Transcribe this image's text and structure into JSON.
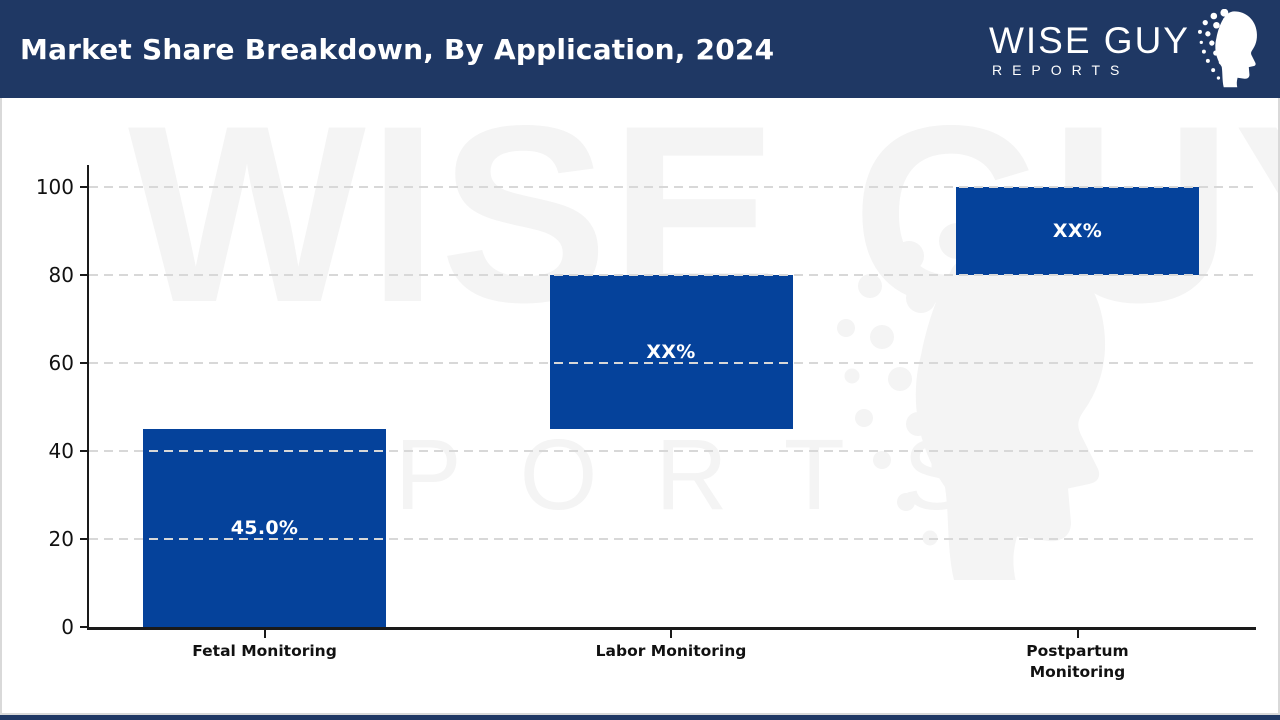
{
  "header": {
    "title": "Market Share Breakdown, By Application, 2024",
    "logo": {
      "line1": "WISE GUY",
      "line2": "REPORTS"
    }
  },
  "watermark": {
    "line1": "WISE GUY",
    "line2": "REPORTS"
  },
  "colors": {
    "header_bg": "#1F3864",
    "footer_bg": "#1F3864",
    "bar": "#05429B",
    "gridline": "#D8D8D8",
    "axis": "#1A1A1A",
    "watermark": "#F4F4F4",
    "title_text": "#FFFFFF",
    "bar_label_text": "#FFFFFF"
  },
  "chart_data": {
    "type": "bar",
    "variant": "waterfall",
    "title": "Market Share Breakdown, By Application, 2024",
    "categories": [
      "Fetal Monitoring",
      "Labor Monitoring",
      "Postpartum Monitoring"
    ],
    "segments": [
      {
        "category": "Fetal Monitoring",
        "start": 0,
        "end": 45,
        "value_label": "45.0%"
      },
      {
        "category": "Labor Monitoring",
        "start": 45,
        "end": 80,
        "value_label": "XX%"
      },
      {
        "category": "Postpartum Monitoring",
        "start": 80,
        "end": 100,
        "value_label": "XX%"
      }
    ],
    "xlabel": "",
    "ylabel": "",
    "ylim": [
      0,
      100
    ],
    "yticks": [
      0,
      20,
      40,
      60,
      80,
      100
    ],
    "grid": {
      "visible": true,
      "style": "dashed",
      "over_bars": true
    },
    "legend": "none"
  }
}
